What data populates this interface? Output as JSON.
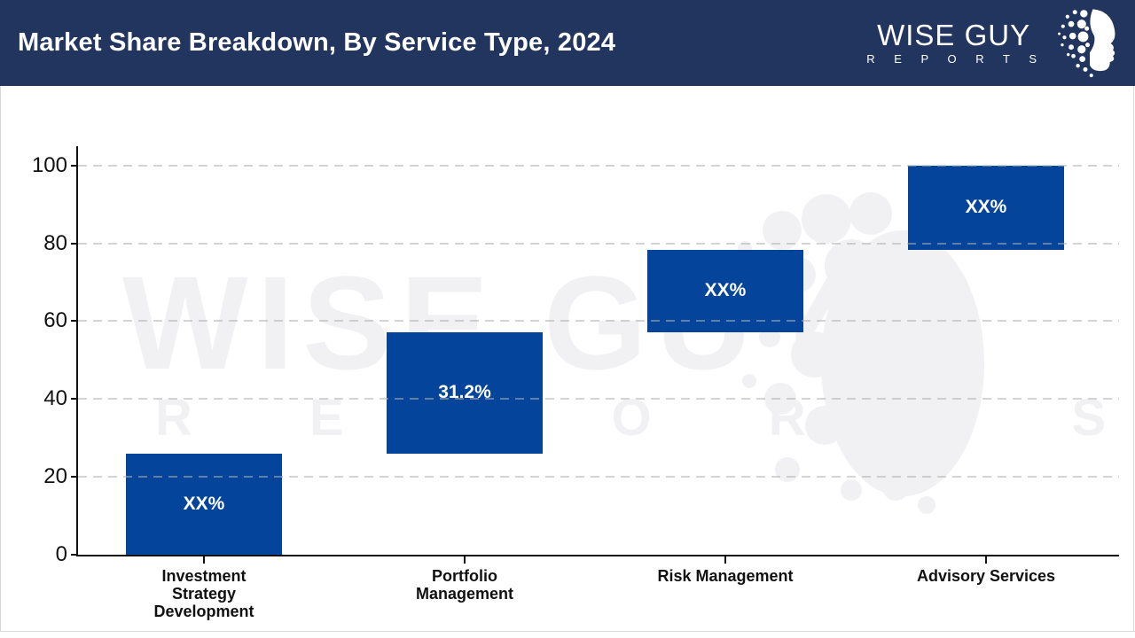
{
  "header": {
    "title": "Market Share Breakdown, By Service Type, 2024",
    "logo": {
      "line1": "WISE GUY",
      "line2": "R E P O R T S"
    }
  },
  "watermark": {
    "line1": "WISE GUY",
    "line2": "R E P O R T S"
  },
  "chart_data": {
    "type": "bar",
    "subtype": "waterfall",
    "title": "Market Share Breakdown, By Service Type, 2024",
    "xlabel": "",
    "ylabel": "",
    "categories": [
      "Investment Strategy Development",
      "Portfolio Management",
      "Risk Management",
      "Advisory Services"
    ],
    "categories_wrapped": [
      [
        "Investment",
        "Strategy",
        "Development"
      ],
      [
        "Portfolio",
        "Management"
      ],
      [
        "Risk Management"
      ],
      [
        "Advisory Services"
      ]
    ],
    "segments": [
      {
        "category": "Investment Strategy Development",
        "start": 0,
        "end": 26,
        "label": "XX%"
      },
      {
        "category": "Portfolio Management",
        "start": 26,
        "end": 57.2,
        "label": "31.2%"
      },
      {
        "category": "Risk Management",
        "start": 57.2,
        "end": 78.3,
        "label": "XX%"
      },
      {
        "category": "Advisory Services",
        "start": 78.3,
        "end": 100,
        "label": "XX%"
      }
    ],
    "bar_labels": [
      "XX%",
      "31.2%",
      "XX%",
      "XX%"
    ],
    "y_ticks": [
      0,
      20,
      40,
      60,
      80,
      100
    ],
    "ylim": [
      0,
      105
    ],
    "grid": "horizontal-dashed",
    "legend": "none",
    "colors": {
      "bar": "#04459b",
      "header_background": "#22355e",
      "title_text": "#ffffff",
      "bar_label_text": "#ffffff",
      "axis": "#111111",
      "watermark": "#f1f1f4"
    }
  }
}
